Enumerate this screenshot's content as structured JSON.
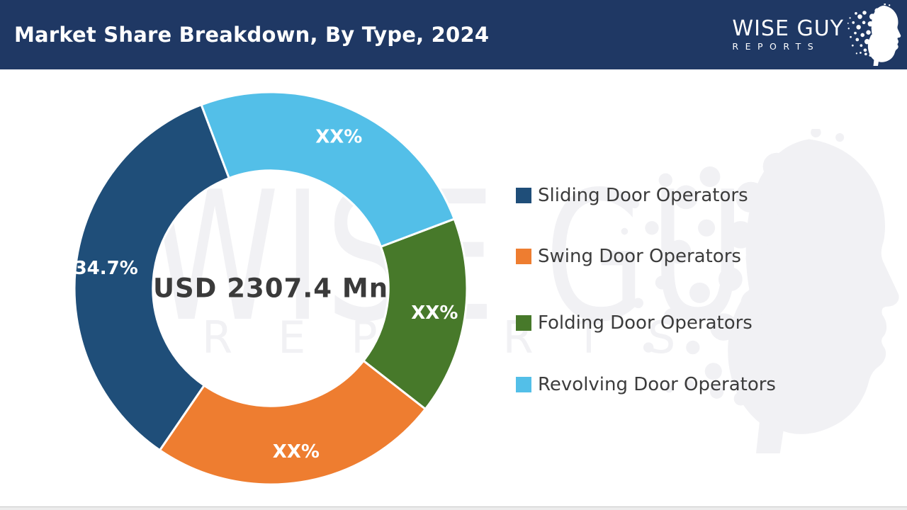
{
  "header": {
    "title": "Market Share Breakdown, By Type, 2024",
    "logo": {
      "primary": "WISE GUY",
      "secondary": "REPORTS"
    }
  },
  "watermark": {
    "line1": "WISE GUY",
    "line2": "REPORTS"
  },
  "footer": {},
  "chart_data": {
    "type": "pie",
    "subtype": "donut",
    "title": "Market Share Breakdown, By Type, 2024",
    "center_label": "USD 2307.4 Mn",
    "units": "percent share",
    "start_angle_deg": 110.7,
    "counterclockwise": true,
    "inner_radius_ratio": 0.6,
    "legend_position": "right",
    "series": [
      {
        "name": "Sliding Door Operators",
        "value": 34.7,
        "label": "34.7%",
        "color": "#1F4E79"
      },
      {
        "name": "Swing Door Operators",
        "value": 24.0,
        "label": "XX%",
        "color": "#EE7D30"
      },
      {
        "name": "Folding Door Operators",
        "value": 16.3,
        "label": "XX%",
        "color": "#47792A"
      },
      {
        "name": "Revolving Door Operators",
        "value": 25.0,
        "label": "XX%",
        "color": "#53BFE8"
      }
    ]
  }
}
